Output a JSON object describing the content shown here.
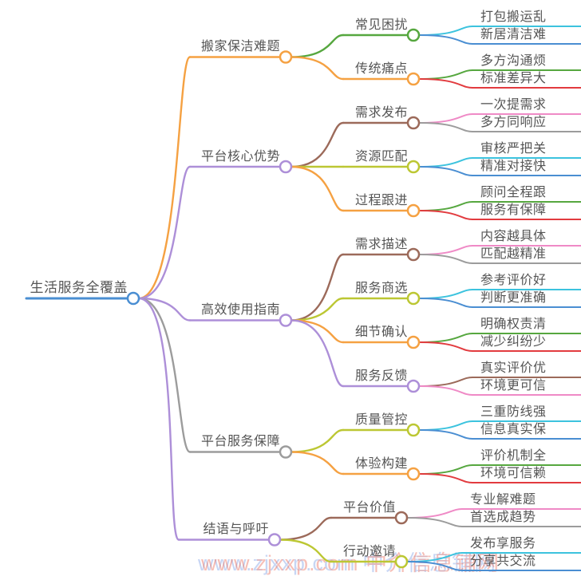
{
  "watermark": "www.zjxxp.com 中介信息铺网",
  "palette": {
    "blue": "#4a8ed2",
    "orange": "#f5a142",
    "purple": "#ad8fd8",
    "gray": "#9c9c9c",
    "green": "#56a73f",
    "red": "#e23b3f",
    "cyan": "#3cc3de",
    "brown": "#9c6a5a",
    "olive": "#bcc733",
    "pink": "#ef8ac6",
    "text": "#555555"
  },
  "root": {
    "label": "生活服务全覆盖",
    "color": "blue"
  },
  "branches": [
    {
      "label": "搬家保洁难题",
      "color": "orange",
      "children": [
        {
          "label": "常见困扰",
          "color": "green",
          "leaves": [
            {
              "label": "打包搬运乱",
              "color": "cyan"
            },
            {
              "label": "新居清洁难",
              "color": "blue"
            }
          ]
        },
        {
          "label": "传统痛点",
          "color": "orange",
          "leaves": [
            {
              "label": "多方沟通烦",
              "color": "green"
            },
            {
              "label": "标准差异大",
              "color": "red"
            }
          ]
        }
      ]
    },
    {
      "label": "平台核心优势",
      "color": "purple",
      "children": [
        {
          "label": "需求发布",
          "color": "brown",
          "leaves": [
            {
              "label": "一次提需求",
              "color": "pink"
            },
            {
              "label": "多方同响应",
              "color": "gray"
            }
          ]
        },
        {
          "label": "资源匹配",
          "color": "olive",
          "leaves": [
            {
              "label": "审核严把关",
              "color": "cyan"
            },
            {
              "label": "精准对接快",
              "color": "blue"
            }
          ]
        },
        {
          "label": "过程跟进",
          "color": "orange",
          "leaves": [
            {
              "label": "顾问全程跟",
              "color": "green"
            },
            {
              "label": "服务有保障",
              "color": "red"
            }
          ]
        }
      ]
    },
    {
      "label": "高效使用指南",
      "color": "purple",
      "children": [
        {
          "label": "需求描述",
          "color": "brown",
          "leaves": [
            {
              "label": "内容越具体",
              "color": "pink"
            },
            {
              "label": "匹配越精准",
              "color": "gray"
            }
          ]
        },
        {
          "label": "服务商选",
          "color": "olive",
          "leaves": [
            {
              "label": "参考评价好",
              "color": "cyan"
            },
            {
              "label": "判断更准确",
              "color": "blue"
            }
          ]
        },
        {
          "label": "细节确认",
          "color": "orange",
          "leaves": [
            {
              "label": "明确权责清",
              "color": "green"
            },
            {
              "label": "减少纠纷少",
              "color": "red"
            }
          ]
        },
        {
          "label": "服务反馈",
          "color": "purple",
          "leaves": [
            {
              "label": "真实评价优",
              "color": "brown"
            },
            {
              "label": "环境更可信",
              "color": "pink"
            }
          ]
        }
      ]
    },
    {
      "label": "平台服务保障",
      "color": "gray",
      "children": [
        {
          "label": "质量管控",
          "color": "olive",
          "leaves": [
            {
              "label": "三重防线强",
              "color": "cyan"
            },
            {
              "label": "信息真实保",
              "color": "blue"
            }
          ]
        },
        {
          "label": "体验构建",
          "color": "orange",
          "leaves": [
            {
              "label": "评价机制全",
              "color": "green"
            },
            {
              "label": "环境可信赖",
              "color": "red"
            }
          ]
        }
      ]
    },
    {
      "label": "结语与呼吁",
      "color": "purple",
      "children": [
        {
          "label": "平台价值",
          "color": "brown",
          "leaves": [
            {
              "label": "专业解难题",
              "color": "pink"
            },
            {
              "label": "首选成趋势",
              "color": "gray"
            }
          ]
        },
        {
          "label": "行动邀请",
          "color": "olive",
          "leaves": [
            {
              "label": "发布享服务",
              "color": "cyan"
            },
            {
              "label": "分享共交流",
              "color": "blue"
            }
          ]
        }
      ]
    }
  ]
}
